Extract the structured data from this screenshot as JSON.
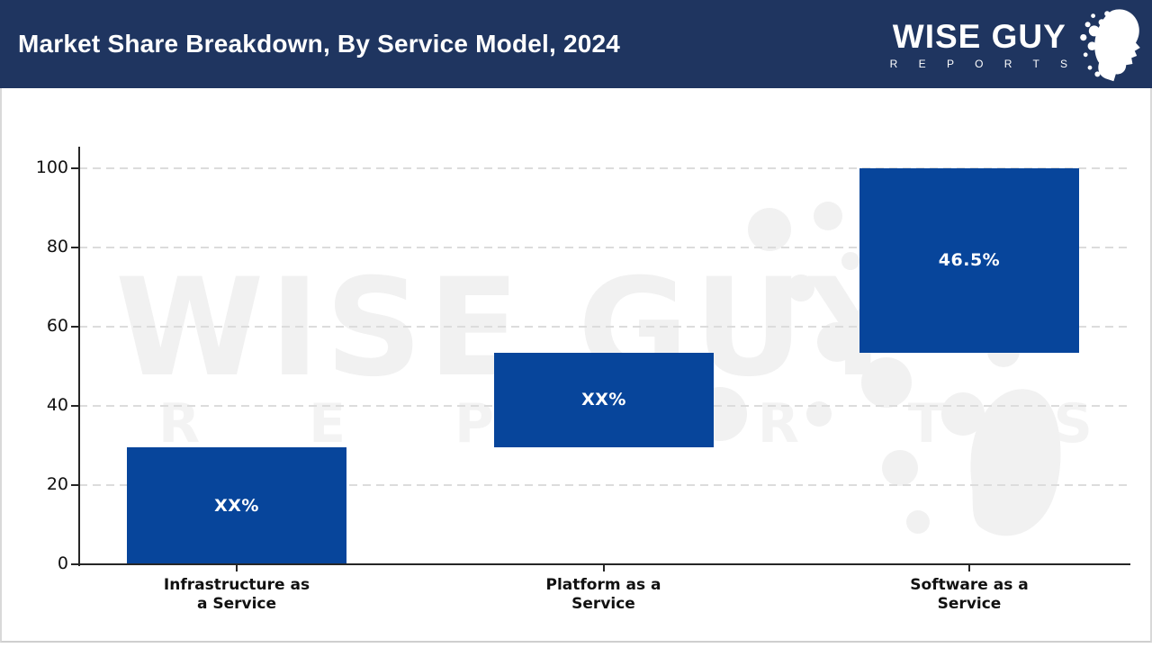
{
  "header": {
    "title": "Market Share Breakdown, By Service Model, 2024",
    "background_color": "#1f3560",
    "logo": {
      "name": "WISE GUY",
      "subtitle": "R E P O R T S"
    }
  },
  "watermark": {
    "line1": "WISE GUY",
    "line2": "R E P O R T S"
  },
  "chart_data": {
    "type": "bar",
    "subtype": "floating_segment_bars",
    "title": "Market Share Breakdown, By Service Model, 2024",
    "categories": [
      {
        "lines": [
          "Infrastructure as",
          "a Service"
        ]
      },
      {
        "lines": [
          "Platform as a",
          "Service"
        ]
      },
      {
        "lines": [
          "Software as a",
          "Service"
        ]
      }
    ],
    "bars": [
      {
        "category": "Infrastructure as a Service",
        "start": 0,
        "end": 29.5,
        "label": "XX%"
      },
      {
        "category": "Platform as a Service",
        "start": 29.5,
        "end": 53.5,
        "label": "XX%"
      },
      {
        "category": "Software as a Service",
        "start": 53.5,
        "end": 100,
        "label": "46.5%"
      }
    ],
    "xlabel": "",
    "ylabel": "",
    "ylim": [
      0,
      100
    ],
    "yticks": [
      0,
      20,
      40,
      60,
      80,
      100
    ],
    "grid": true,
    "grid_style": "dashed",
    "legend": "none",
    "bar_color": "#07459b",
    "bar_label_color": "#ffffff"
  }
}
